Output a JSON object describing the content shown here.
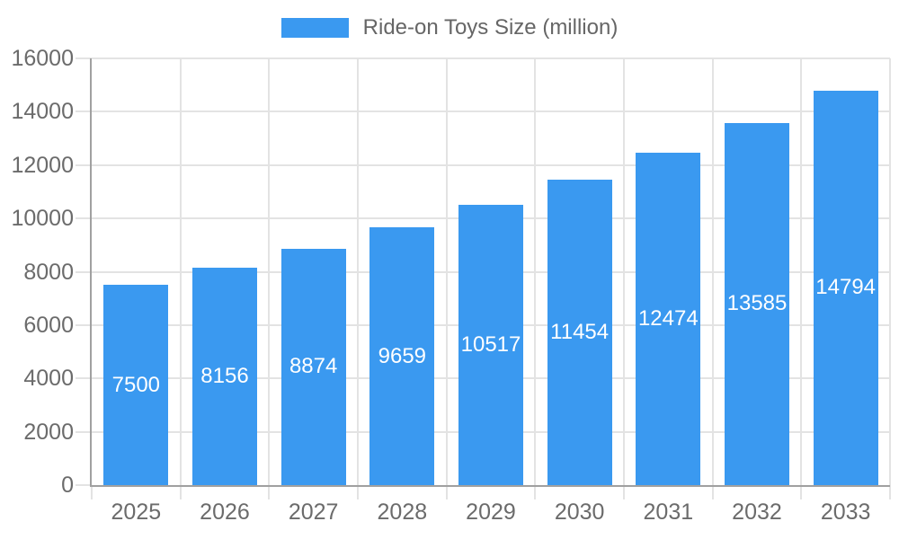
{
  "legend": {
    "label": "Ride-on Toys Size (million)"
  },
  "chart_data": {
    "type": "bar",
    "title": "Ride-on Toys Size (million)",
    "categories": [
      "2025",
      "2026",
      "2027",
      "2028",
      "2029",
      "2030",
      "2031",
      "2032",
      "2033"
    ],
    "values": [
      7500,
      8156,
      8874,
      9659,
      10517,
      11454,
      12474,
      13585,
      14794
    ],
    "xlabel": "",
    "ylabel": "",
    "ylim": [
      0,
      16000
    ],
    "yticks": [
      0,
      2000,
      4000,
      6000,
      8000,
      10000,
      12000,
      14000,
      16000
    ],
    "grid": true,
    "legend_position": "top",
    "colors": {
      "bar": "#3A99F0",
      "bar_value_text": "#ffffff",
      "grid": "#e3e3e3",
      "axis": "#a0a0a0",
      "tick_text": "#6b6b6b",
      "legend_text": "#666666"
    }
  }
}
